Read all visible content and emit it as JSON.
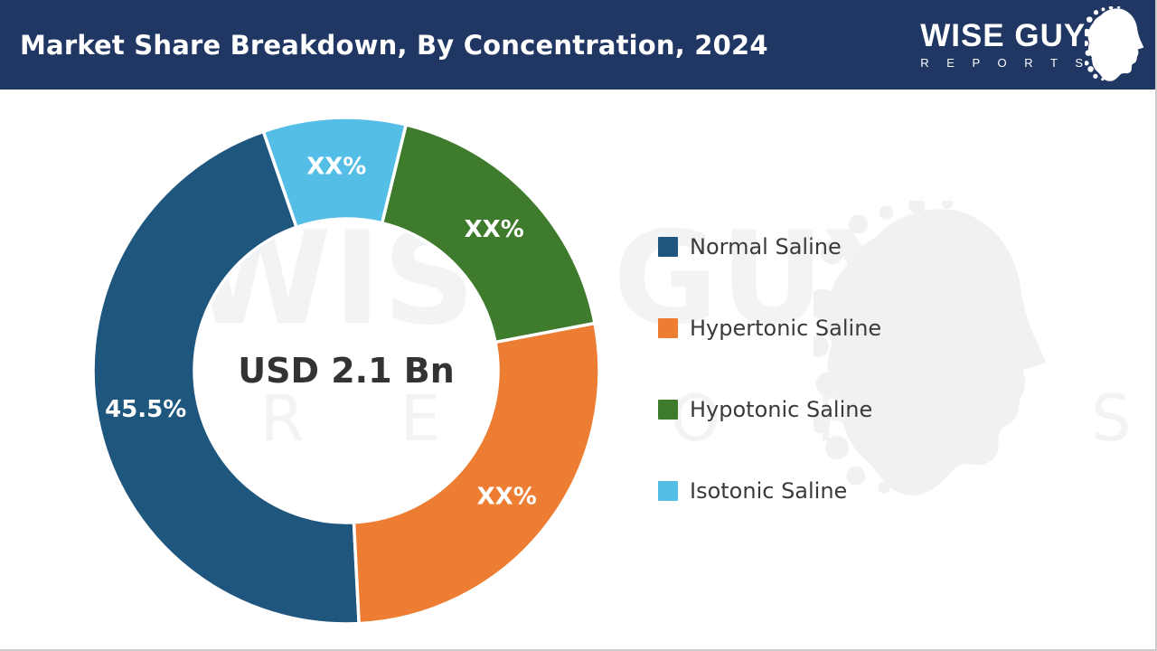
{
  "header": {
    "title": "Market Share Breakdown, By Concentration, 2024",
    "logo": {
      "line1": "WISE GUY",
      "line2": "R E P O R T S"
    }
  },
  "watermark": {
    "line1": "WISE GUY",
    "line2": "R E P O R T S"
  },
  "chart_data": {
    "type": "pie",
    "subtype": "donut",
    "title": "Market Share Breakdown, By Concentration, 2024",
    "center_label": "USD 2.1 Bn",
    "legend_position": "right",
    "direction": "counterclockwise",
    "start_compass_deg": 340.9,
    "segments": [
      {
        "name": "Normal Saline",
        "value_pct": 45.5,
        "display_label": "45.5%",
        "color": "#1F567E"
      },
      {
        "name": "Hypertonic Saline",
        "value_pct": 27.2,
        "display_label": "XX%",
        "color": "#EC7D32"
      },
      {
        "name": "Hypotonic Saline",
        "value_pct": 18.2,
        "display_label": "XX%",
        "color": "#3E7B2C"
      },
      {
        "name": "Isotonic Saline",
        "value_pct": 9.1,
        "display_label": "XX%",
        "color": "#54BEE7"
      }
    ]
  },
  "colors": {
    "header_bg": "#203663",
    "title_color": "#ffffff",
    "watermark": "#f2f3f5",
    "center_label_color": "#333333",
    "legend_text": "#3a3a3a",
    "border": "#cbcbcb"
  }
}
